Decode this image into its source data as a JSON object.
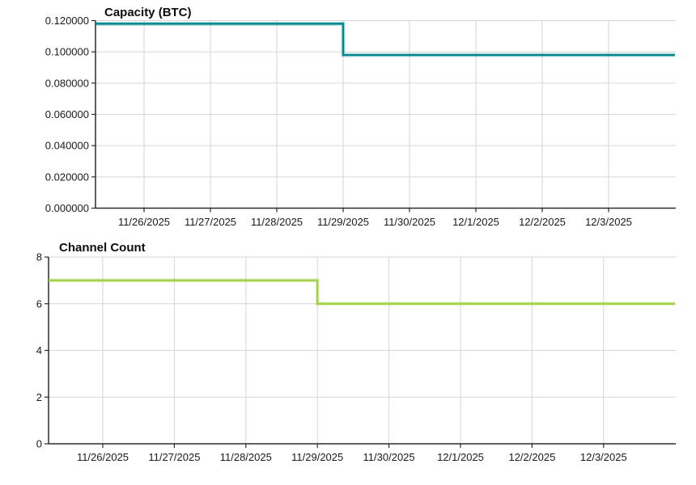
{
  "page": {
    "background": "#ffffff"
  },
  "chart_data": [
    {
      "id": "capacity",
      "type": "line",
      "subtype": "step",
      "title": "Capacity (BTC)",
      "xlabel": "",
      "ylabel": "",
      "x_tick_labels": [
        "11/26/2025",
        "11/27/2025",
        "11/28/2025",
        "11/29/2025",
        "11/30/2025",
        "12/1/2025",
        "12/2/2025",
        "12/3/2025"
      ],
      "y_tick_labels": [
        "0.120000",
        "0.100000",
        "0.080000",
        "0.060000",
        "0.040000",
        "0.020000",
        "0.000000"
      ],
      "y_min": 0,
      "y_max": 0.12,
      "grid": true,
      "legend": "none",
      "series": [
        {
          "name": "Capacity (BTC)",
          "color": "#00868c",
          "step_change": {
            "date": "11/29/2025",
            "before": 0.118,
            "after": 0.098
          },
          "points": [
            {
              "x": "11/25/2025",
              "y": 0.118
            },
            {
              "x": "11/29/2025",
              "y": 0.118
            },
            {
              "x": "11/29/2025",
              "y": 0.098
            },
            {
              "x": "12/4/2025",
              "y": 0.098
            }
          ]
        }
      ]
    },
    {
      "id": "channel-count",
      "type": "line",
      "subtype": "step",
      "title": "Channel Count",
      "xlabel": "",
      "ylabel": "",
      "x_tick_labels": [
        "11/26/2025",
        "11/27/2025",
        "11/28/2025",
        "11/29/2025",
        "11/30/2025",
        "12/1/2025",
        "12/2/2025",
        "12/3/2025"
      ],
      "y_tick_labels": [
        "8",
        "6",
        "4",
        "2",
        "0"
      ],
      "y_min": 0,
      "y_max": 8,
      "grid": true,
      "legend": "none",
      "series": [
        {
          "name": "Channel Count",
          "color": "#a2d145",
          "step_change": {
            "date": "11/29/2025",
            "before": 7,
            "after": 6
          },
          "points": [
            {
              "x": "11/25/2025",
              "y": 7
            },
            {
              "x": "11/29/2025",
              "y": 7
            },
            {
              "x": "11/29/2025",
              "y": 6
            },
            {
              "x": "12/4/2025",
              "y": 6
            }
          ]
        }
      ]
    }
  ]
}
